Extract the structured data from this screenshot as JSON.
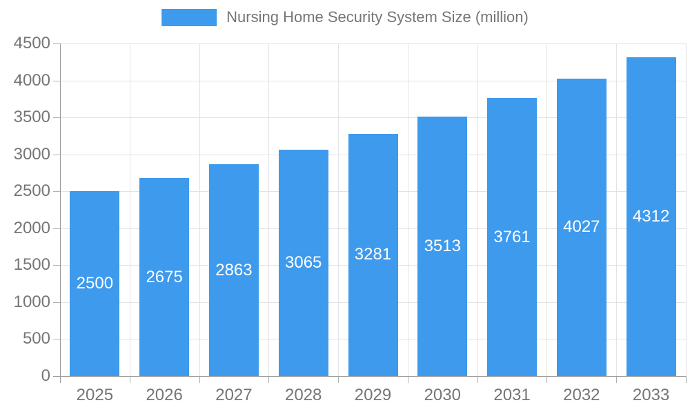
{
  "legend": {
    "label": "Nursing Home Security System Size (million)"
  },
  "colors": {
    "bar": "#3D9AEC",
    "bar_label": "#FFFFFF",
    "grid": "#E3E3E3",
    "axis": "#9A9A9A",
    "tick": "#B0B0B0",
    "text": "#757575",
    "background": "#FFFFFF"
  },
  "chart_data": {
    "type": "bar",
    "title": "Nursing Home Security System Size (million)",
    "categories": [
      "2025",
      "2026",
      "2027",
      "2028",
      "2029",
      "2030",
      "2031",
      "2032",
      "2033"
    ],
    "values": [
      2500,
      2675,
      2863,
      3065,
      3281,
      3513,
      3761,
      4027,
      4312
    ],
    "xlabel": "",
    "ylabel": "",
    "ylim": [
      0,
      4500
    ],
    "yticks": [
      0,
      500,
      1000,
      1500,
      2000,
      2500,
      3000,
      3500,
      4000,
      4500
    ],
    "grid": true,
    "legend_position": "top-center",
    "value_labels": "inside-center"
  }
}
